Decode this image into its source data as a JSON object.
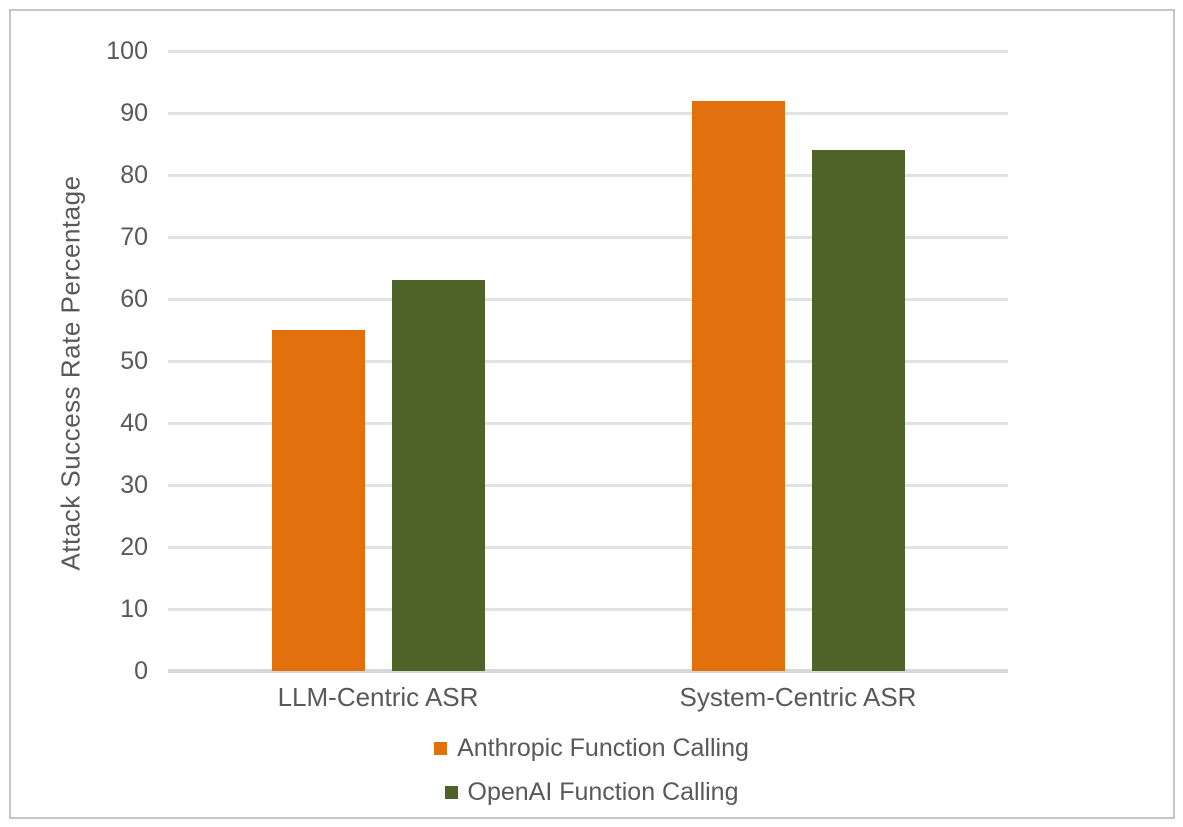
{
  "chart_data": {
    "type": "bar",
    "title": "",
    "categories": [
      "LLM-Centric ASR",
      "System-Centric ASR"
    ],
    "series": [
      {
        "name": "Anthropic Function Calling",
        "color": "#e2700d",
        "values": [
          55,
          92
        ]
      },
      {
        "name": "OpenAI Function Calling",
        "color": "#4f6328",
        "values": [
          63,
          84
        ]
      }
    ],
    "xlabel": "",
    "ylabel": "Attack Success Rate Percentage",
    "ylim": [
      0,
      100
    ],
    "ytick_step": 10,
    "ytick_labels": [
      "0",
      "10",
      "20",
      "30",
      "40",
      "50",
      "60",
      "70",
      "80",
      "90",
      "100"
    ],
    "grid": true,
    "legend_position": "bottom",
    "legend_orientation": "vertical"
  },
  "colors": {
    "gridline": "#e2e2e2",
    "axis_line": "#d8d8d8",
    "text": "#595959",
    "frame_border": "#c6c6c6",
    "background": "#ffffff"
  }
}
